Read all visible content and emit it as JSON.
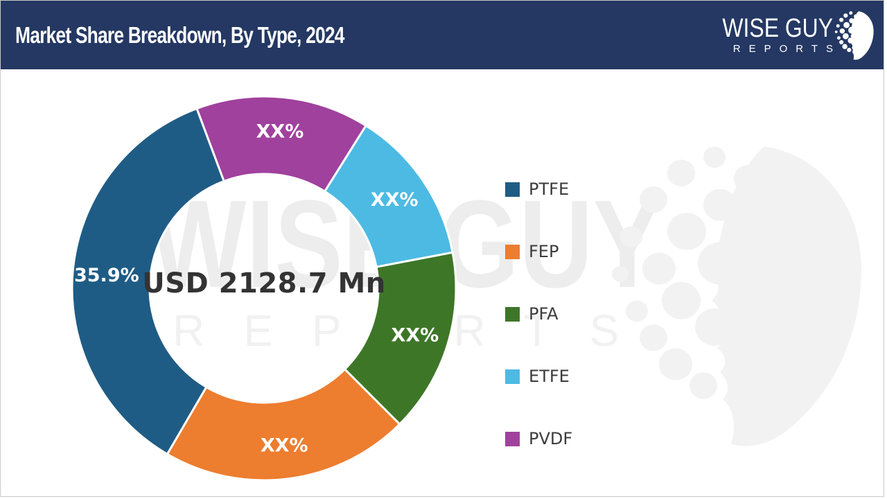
{
  "header": {
    "title": "Market Share Breakdown, By Type, 2024",
    "bg_color": "#243863",
    "logo": {
      "line1": "WISE GUY",
      "line2": "REPORTS"
    }
  },
  "watermark": {
    "line1": "WISE GUY",
    "line2": "REPORTS"
  },
  "chart_data": {
    "type": "pie",
    "subtype": "donut",
    "center_label": "USD 2128.7 Mn",
    "start_angle_deg": 110.5,
    "direction": "counterclockwise",
    "legend_position": "right",
    "segments": [
      {
        "label": "PTFE",
        "display_value": "35.9%",
        "value_pct": 35.9,
        "color": "#1f5c85"
      },
      {
        "label": "FEP",
        "display_value": "XX%",
        "value_pct": 20.9,
        "color": "#ed7d2f"
      },
      {
        "label": "PFA",
        "display_value": "XX%",
        "value_pct": 15.5,
        "color": "#3e7628"
      },
      {
        "label": "ETFE",
        "display_value": "XX%",
        "value_pct": 13.1,
        "color": "#4dbae3"
      },
      {
        "label": "PVDF",
        "display_value": "XX%",
        "value_pct": 14.6,
        "color": "#a0419d"
      }
    ],
    "value_label_color": "#ffffff",
    "center_label_color": "#333333"
  }
}
